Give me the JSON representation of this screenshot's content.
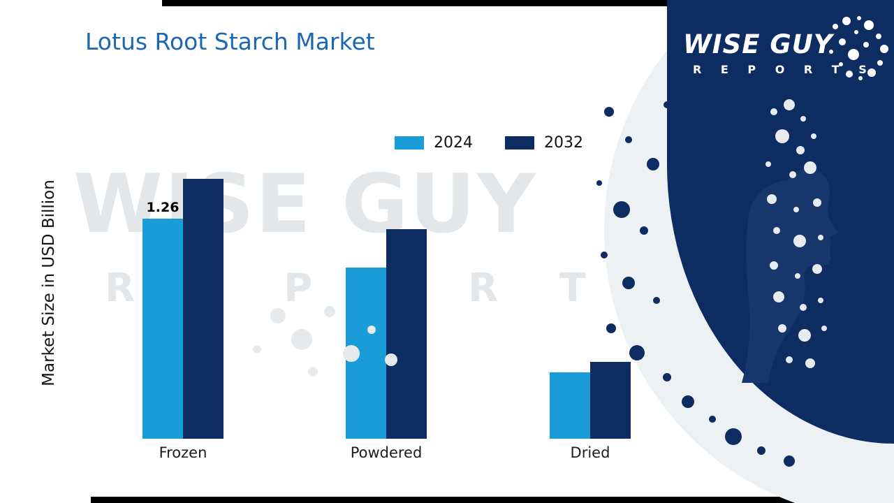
{
  "page": {
    "title": "Lotus Root Starch Market"
  },
  "watermark": {
    "line1": "WISE GUY",
    "line2": "R E P O R T S"
  },
  "logo": {
    "line1": "WISE GUY",
    "line2": "R E P O R T S"
  },
  "colors": {
    "title": "#1b67b2",
    "bar_2024": "#1a9cd8",
    "bar_2032": "#0d2c62",
    "panel": "#0d2c62",
    "watermark": "#e4e7ea"
  },
  "chart_data": {
    "type": "bar",
    "title": "Lotus Root Starch Market",
    "categories": [
      "Frozen",
      "Powdered",
      "Dried"
    ],
    "series": [
      {
        "name": "2024",
        "color": "#1a9cd8",
        "values": [
          1.26,
          0.98,
          0.38
        ],
        "data_labels": [
          "1.26",
          "",
          ""
        ]
      },
      {
        "name": "2032",
        "color": "#0d2c62",
        "values": [
          1.49,
          1.2,
          0.44
        ],
        "data_labels": [
          "",
          "",
          ""
        ]
      }
    ],
    "xlabel": "",
    "ylabel": "Market Size in USD Billion",
    "ylim": [
      0,
      1.6
    ],
    "grid": false,
    "legend_position": "top-center"
  }
}
